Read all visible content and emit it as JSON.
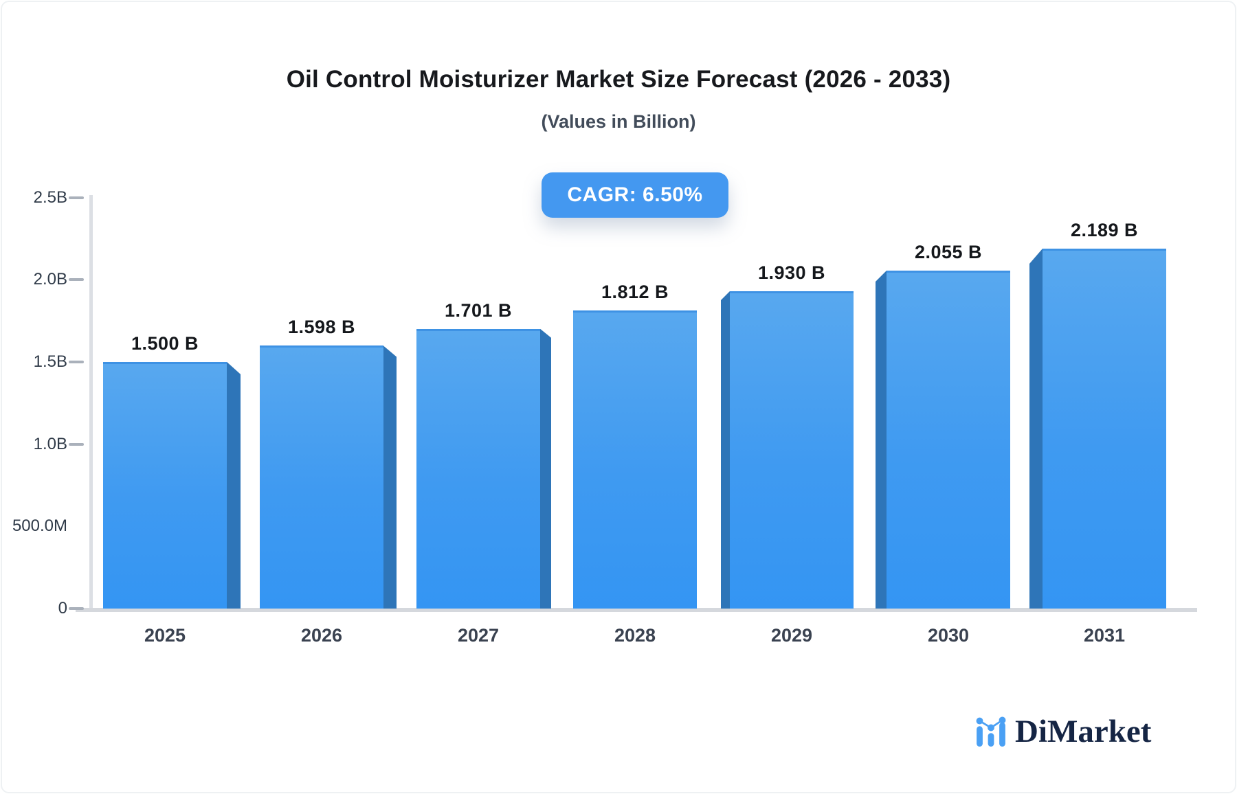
{
  "header": {
    "title": "Oil Control Moisturizer Market Size Forecast (2026 - 2033)",
    "subtitle": "(Values in Billion)",
    "cagr_label": "CAGR: 6.50%"
  },
  "chart_data": {
    "type": "bar",
    "title": "Oil Control Moisturizer Market Size Forecast (2026 - 2033)",
    "subtitle": "(Values in Billion)",
    "annotation": "CAGR: 6.50%",
    "cagr_percent": 6.5,
    "categories": [
      "2025",
      "2026",
      "2027",
      "2028",
      "2029",
      "2030",
      "2031"
    ],
    "values": [
      1.5,
      1.598,
      1.701,
      1.812,
      1.93,
      2.055,
      2.189
    ],
    "value_labels": [
      "1.500 B",
      "1.598 B",
      "1.701 B",
      "1.812 B",
      "1.930 B",
      "2.055 B",
      "2.189 B"
    ],
    "unit": "Billion",
    "xlabel": "",
    "ylabel": "",
    "ylim": [
      0,
      2.5
    ],
    "yticks": [
      {
        "value": 0.0,
        "label": "0",
        "dash": true
      },
      {
        "value": 0.5,
        "label": "500.0M",
        "dash": false
      },
      {
        "value": 1.0,
        "label": "1.0B",
        "dash": true
      },
      {
        "value": 1.5,
        "label": "1.5B",
        "dash": true
      },
      {
        "value": 2.0,
        "label": "2.0B",
        "dash": true
      },
      {
        "value": 2.5,
        "label": "2.5B",
        "dash": true
      }
    ],
    "grid": false,
    "legend": false,
    "bar_style": "3d-bevel",
    "colors": {
      "bar_top": "#58a8ef",
      "bar_bottom": "#3495f3",
      "bar_side": "#2e75b8",
      "bar_edge": "#3e92e4",
      "badge": "#4498f0",
      "axis_line": "#d5d8dd",
      "tick_text": "#2f3a48",
      "value_text": "#14171b"
    }
  },
  "footer": {
    "brand": "DiMarket",
    "logo_color": "#4aa0f4",
    "text_color": "#152544"
  }
}
